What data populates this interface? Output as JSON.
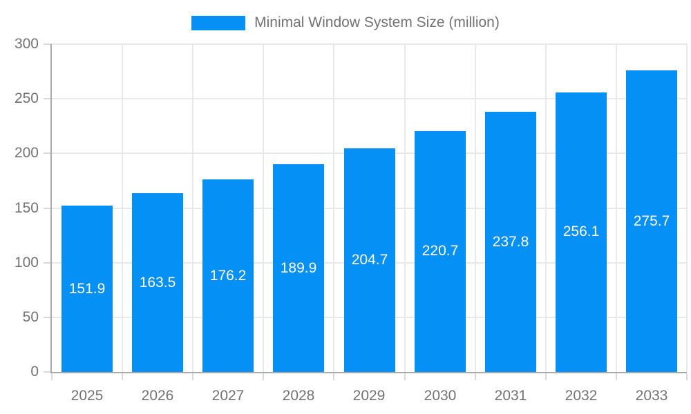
{
  "chart_data": {
    "type": "bar",
    "title": "Minimal Window System Size (million)",
    "categories": [
      "2025",
      "2026",
      "2027",
      "2028",
      "2029",
      "2030",
      "2031",
      "2032",
      "2033"
    ],
    "values": [
      151.9,
      163.5,
      176.2,
      189.9,
      204.7,
      220.7,
      237.8,
      256.1,
      275.7
    ],
    "value_labels": [
      "151.9",
      "163.5",
      "176.2",
      "189.9",
      "204.7",
      "220.7",
      "237.8",
      "256.1",
      "275.7"
    ],
    "xlabel": "",
    "ylabel": "",
    "ylim": [
      0,
      300
    ],
    "yticks": [
      0,
      50,
      100,
      150,
      200,
      250,
      300
    ],
    "legend_position": "top-center",
    "grid": true,
    "value_label_position": "center-of-bar",
    "colors": {
      "bar": "#0590f6",
      "value_label": "#ffffff",
      "text": "#737373",
      "grid": "#e9e9e9",
      "tick": "#d9d9d9",
      "axis": "#a9a9a9",
      "background": "#ffffff"
    }
  }
}
